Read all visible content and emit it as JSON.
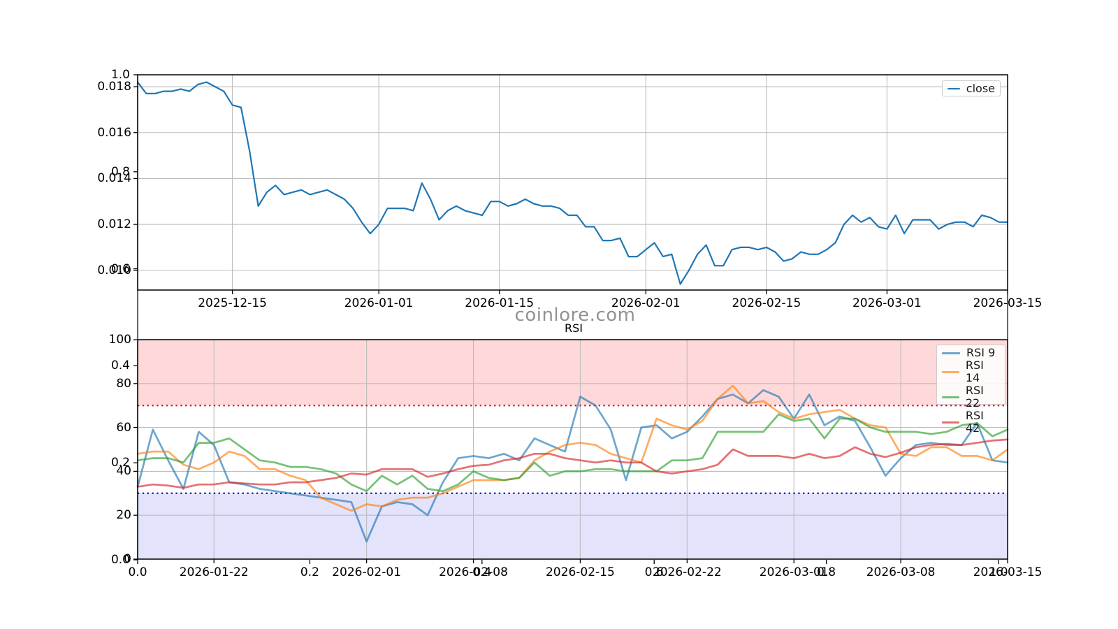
{
  "watermark": "coinlore.com",
  "rsi_title": "RSI",
  "colors": {
    "close": "#1f77b4",
    "rsi_series": [
      "#1f77b4",
      "#ff7f0e",
      "#2ca02c",
      "#d62728"
    ],
    "rsi_alpha": 0.65,
    "overbought_band": "rgba(255,0,0,0.15)",
    "oversold_band": "rgba(70,70,235,0.15)",
    "overbought_line": "#dc143c",
    "oversold_line": "#2222cc",
    "grid": "#bdbdbd",
    "spine": "#000000",
    "watermark_color": "#7f7f7f"
  },
  "ghost_axis": {
    "x_tick_labels": [
      "0.0",
      "0.2",
      "0.4",
      "0.6",
      "0.8",
      "1.0"
    ],
    "y_tick_labels": [
      "0.0",
      "0.2",
      "0.4",
      "0.6",
      "0.8",
      "1.0"
    ]
  },
  "chart_data": [
    {
      "id": "price",
      "type": "line",
      "legend": [
        "close"
      ],
      "legend_position": "upper right",
      "grid": true,
      "x_start_date": "2025-12-04",
      "x_end_date": "2026-03-15",
      "x_tick_labels": [
        "2025-12-15",
        "2026-01-01",
        "2026-01-15",
        "2026-02-01",
        "2026-02-15",
        "2026-03-01",
        "2026-03-15"
      ],
      "x_tick_indices": [
        11,
        28,
        42,
        59,
        73,
        87,
        101
      ],
      "y_tick_labels": [
        "0.010",
        "0.012",
        "0.014",
        "0.016",
        "0.018"
      ],
      "y_tick_values": [
        0.01,
        0.012,
        0.014,
        0.016,
        0.018
      ],
      "ylim": [
        0.00914,
        0.01852
      ],
      "series": [
        {
          "name": "close",
          "values": [
            0.0182,
            0.0177,
            0.0177,
            0.0178,
            0.0178,
            0.0179,
            0.0178,
            0.0181,
            0.0182,
            0.018,
            0.0178,
            0.0172,
            0.0171,
            0.0152,
            0.0128,
            0.0134,
            0.0137,
            0.0133,
            0.0134,
            0.0135,
            0.0133,
            0.0134,
            0.0135,
            0.0133,
            0.0131,
            0.0127,
            0.0121,
            0.0116,
            0.012,
            0.0127,
            0.0127,
            0.0127,
            0.0126,
            0.0138,
            0.0131,
            0.0122,
            0.0126,
            0.0128,
            0.0126,
            0.0125,
            0.0124,
            0.013,
            0.013,
            0.0128,
            0.0129,
            0.0131,
            0.0129,
            0.0128,
            0.0128,
            0.0127,
            0.0124,
            0.0124,
            0.0119,
            0.0119,
            0.0113,
            0.0113,
            0.0114,
            0.0106,
            0.0106,
            0.0109,
            0.0112,
            0.0106,
            0.0107,
            0.0094,
            0.01,
            0.0107,
            0.0111,
            0.0102,
            0.0102,
            0.0109,
            0.011,
            0.011,
            0.0109,
            0.011,
            0.0108,
            0.0104,
            0.0105,
            0.0108,
            0.0107,
            0.0107,
            0.0109,
            0.0112,
            0.012,
            0.0124,
            0.0121,
            0.0123,
            0.0119,
            0.0118,
            0.0124,
            0.0116,
            0.0122,
            0.0122,
            0.0122,
            0.0118,
            0.012,
            0.0121,
            0.0121,
            0.0119,
            0.0124,
            0.0123,
            0.0121,
            0.0121
          ]
        }
      ]
    },
    {
      "id": "rsi",
      "type": "line",
      "title": "RSI",
      "legend": [
        "RSI 9",
        "RSI 14",
        "RSI 22",
        "RSI 42"
      ],
      "legend_position": "upper right",
      "grid": true,
      "x_start_date": "2026-01-17",
      "x_end_date": "2026-03-15",
      "x_tick_labels": [
        "2026-01-22",
        "2026-02-01",
        "2026-02-08",
        "2026-02-15",
        "2026-02-22",
        "2026-03-01",
        "2026-03-08",
        "2026-03-15"
      ],
      "x_tick_indices": [
        5,
        15,
        22,
        29,
        36,
        43,
        50,
        57
      ],
      "y_tick_labels": [
        "0",
        "20",
        "40",
        "60",
        "80",
        "100"
      ],
      "y_tick_values": [
        0,
        20,
        40,
        60,
        80,
        100
      ],
      "ylim": [
        0,
        100
      ],
      "overbought_level": 70,
      "oversold_level": 30,
      "series": [
        {
          "name": "RSI 9",
          "values": [
            33,
            59,
            45,
            32,
            58,
            52,
            35,
            34,
            32,
            31,
            30,
            29,
            28,
            27,
            26,
            8,
            24,
            26,
            25,
            20,
            35,
            46,
            47,
            46,
            48,
            45,
            55,
            52,
            49,
            74,
            70,
            59,
            36,
            60,
            61,
            55,
            58,
            65,
            73,
            75,
            71,
            77,
            74,
            64,
            75,
            61,
            65,
            63,
            51,
            38,
            46,
            52,
            53,
            52,
            52,
            62,
            45,
            44
          ]
        },
        {
          "name": "RSI 14",
          "values": [
            48,
            49,
            49,
            43,
            41,
            44,
            49,
            47,
            41,
            41,
            38,
            36,
            28,
            25,
            22,
            25,
            24,
            27,
            28,
            28,
            30,
            33,
            36,
            36,
            36,
            37,
            45,
            49,
            52,
            53,
            52,
            48,
            46,
            44,
            64,
            61,
            59,
            63,
            73,
            79,
            71,
            72,
            67,
            64,
            66,
            67,
            68,
            64,
            61,
            60,
            48,
            47,
            51,
            51,
            47,
            47,
            45,
            50
          ]
        },
        {
          "name": "RSI 22",
          "values": [
            45,
            46,
            46,
            44,
            53,
            53,
            55,
            50,
            45,
            44,
            42,
            42,
            41,
            39,
            34,
            31,
            38,
            34,
            38,
            32,
            31,
            34,
            40,
            37,
            36,
            37,
            44,
            38,
            40,
            40,
            41,
            41,
            40,
            40,
            40,
            45,
            45,
            46,
            58,
            58,
            58,
            58,
            66,
            63,
            64,
            55,
            64,
            64,
            60,
            58,
            58,
            58,
            57,
            58,
            61,
            62,
            56,
            59
          ]
        },
        {
          "name": "RSI 42",
          "values": [
            33,
            34,
            33.5,
            32.5,
            34,
            34,
            35,
            34.5,
            34,
            34,
            35,
            35,
            36,
            37,
            39,
            38.5,
            41,
            41,
            41,
            37.5,
            39,
            41,
            42.5,
            43,
            45,
            46,
            48,
            48,
            46,
            45,
            44,
            45,
            44,
            44,
            40,
            39,
            40,
            41,
            43,
            50,
            47,
            47,
            47,
            46,
            48,
            46,
            47,
            51,
            48,
            46.5,
            48.5,
            51,
            52,
            52.5,
            52,
            53,
            54,
            54.5
          ]
        }
      ]
    }
  ]
}
